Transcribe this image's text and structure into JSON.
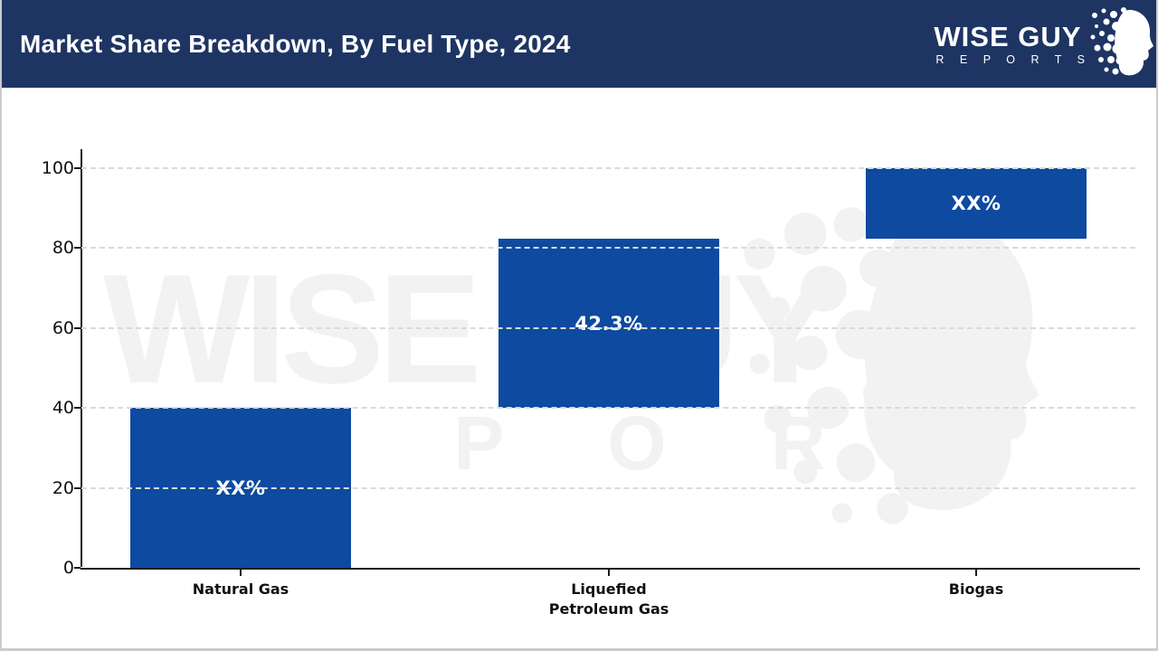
{
  "header": {
    "title": "Market Share Breakdown, By Fuel Type, 2024",
    "bg_color": "#1e3563",
    "logo": {
      "line1": "WISE GUY",
      "line2": "R E P O R T S"
    }
  },
  "watermark": {
    "line1": "WISE GUY",
    "line2": "R E P O R T S"
  },
  "chart_data": {
    "type": "bar",
    "subtype": "stacked-waterfall-percentage",
    "title": "Market Share Breakdown, By Fuel Type, 2024",
    "categories": [
      "Natural Gas",
      "Liquefied\nPetroleum Gas",
      "Biogas"
    ],
    "segments": [
      {
        "category": "Natural Gas",
        "start": 0,
        "end": 40,
        "label": "XX%"
      },
      {
        "category": "Liquefied\nPetroleum Gas",
        "start": 40,
        "end": 82.3,
        "label": "42.3%"
      },
      {
        "category": "Biogas",
        "start": 82.3,
        "end": 100,
        "label": "XX%"
      }
    ],
    "bar_color": "#0d4aa0",
    "label_color": "#ffffff",
    "xlabel": "",
    "ylabel": "",
    "ylim": [
      0,
      100
    ],
    "yticks": [
      0,
      20,
      40,
      60,
      80,
      100
    ],
    "grid": "horizontal-dashed",
    "grid_color": "#dadada",
    "legend": "none"
  }
}
